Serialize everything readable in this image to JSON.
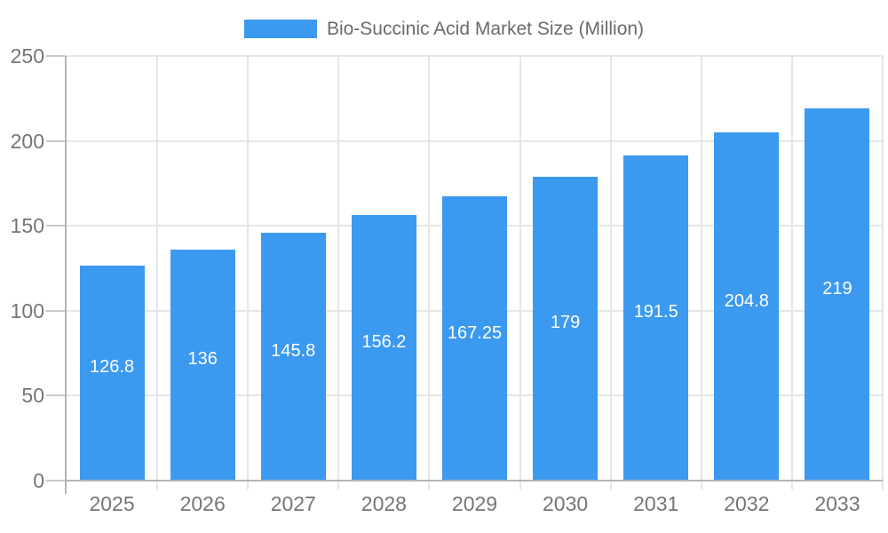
{
  "chart_data": {
    "type": "bar",
    "title": "Bio-Succinic Acid Market Size (Million)",
    "legend_position": "top-center",
    "categories": [
      "2025",
      "2026",
      "2027",
      "2028",
      "2029",
      "2030",
      "2031",
      "2032",
      "2033"
    ],
    "series": [
      {
        "name": "Bio-Succinic Acid Market Size (Million)",
        "color": "#3B99EF",
        "values": [
          126.8,
          136,
          145.8,
          156.2,
          167.25,
          179,
          191.5,
          204.8,
          219
        ]
      }
    ],
    "bar_labels": [
      "126.8",
      "136",
      "145.8",
      "156.2",
      "167.25",
      "179",
      "191.5",
      "204.8",
      "219"
    ],
    "xlabel": "",
    "ylabel": "",
    "ylim": [
      0,
      250
    ],
    "yticks": [
      0,
      50,
      100,
      150,
      200,
      250
    ],
    "grid": true
  },
  "colors": {
    "bar": "#3B99EF",
    "axis_line": "#b3b3b3",
    "gridline": "#e6e6e6",
    "tick": "#c9c9c9",
    "axis_label": "#757575",
    "legend_text": "#6b6b6b",
    "bar_label": "#ffffff",
    "background": "#ffffff"
  }
}
